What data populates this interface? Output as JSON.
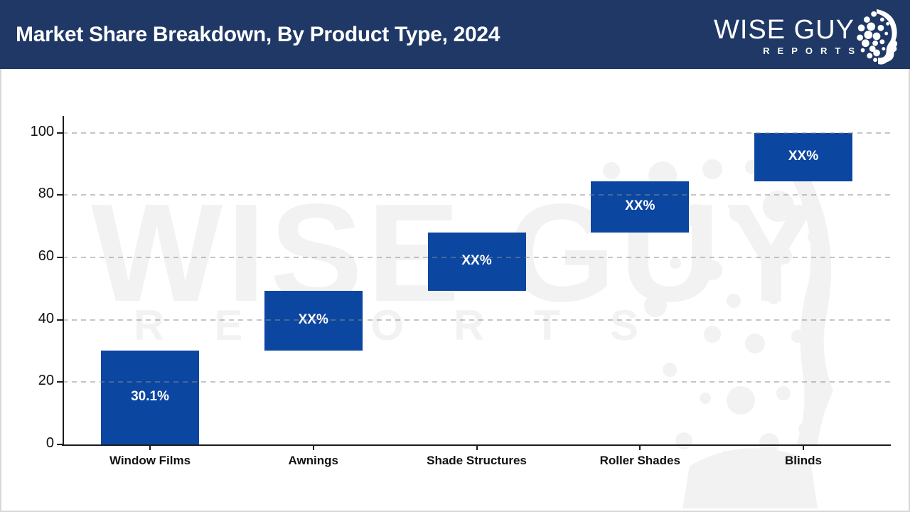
{
  "header": {
    "title": "Market Share Breakdown, By Product Type, 2024",
    "logo": {
      "wordmark": "WISE GUY",
      "subtext": "REPORTS"
    }
  },
  "watermark": {
    "wordmark": "WISE GUY",
    "subtext": "REPORTS"
  },
  "colors": {
    "header_bg": "#1f3865",
    "bar": "#0b46a1",
    "axis": "#1c1c1c",
    "gridline": "#d2d2d2",
    "watermark": "#f2f2f2",
    "title_text": "#ffffff",
    "bar_label_text": "#ffffff"
  },
  "chart_data": {
    "type": "bar",
    "subtype": "floating-waterfall",
    "title": "Market Share Breakdown, By Product Type, 2024",
    "categories": [
      "Window Films",
      "Awnings",
      "Shade Structures",
      "Roller Shades",
      "Blinds"
    ],
    "bars": [
      {
        "category": "Window Films",
        "start": 0,
        "end": 30.1,
        "label": "30.1%"
      },
      {
        "category": "Awnings",
        "start": 30.1,
        "end": 49.2,
        "label": "XX%"
      },
      {
        "category": "Shade Structures",
        "start": 49.2,
        "end": 68.0,
        "label": "XX%"
      },
      {
        "category": "Roller Shades",
        "start": 68.0,
        "end": 84.3,
        "label": "XX%"
      },
      {
        "category": "Blinds",
        "start": 84.3,
        "end": 100.0,
        "label": "XX%"
      }
    ],
    "yticks": [
      0,
      20,
      40,
      60,
      80,
      100
    ],
    "ylim": [
      0,
      105
    ],
    "xlabel": "",
    "ylabel": "",
    "grid": "horizontal-dashed",
    "legend": "none"
  }
}
